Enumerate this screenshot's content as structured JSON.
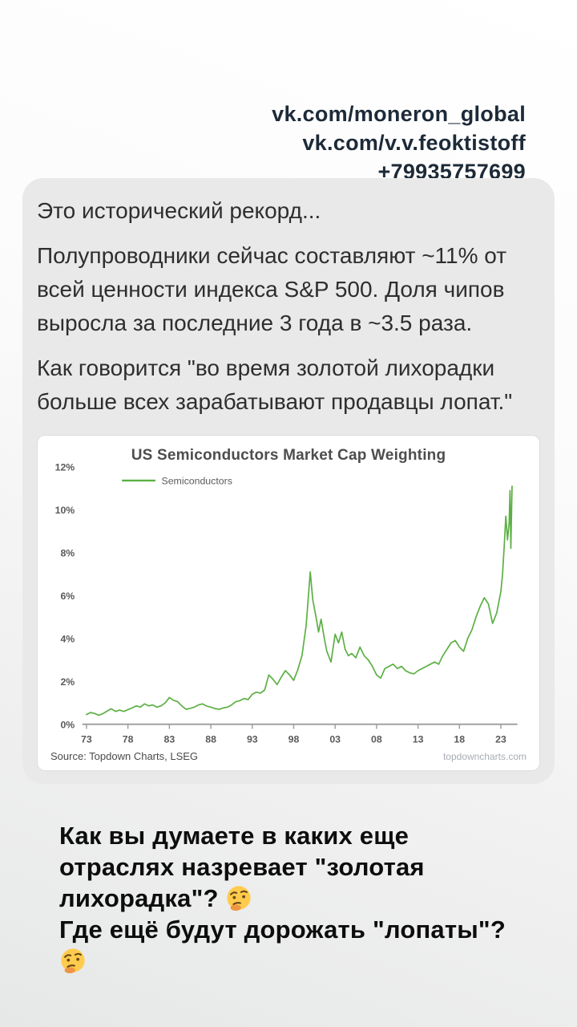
{
  "contact": {
    "line1": "vk.com/moneron_global",
    "line2": "vk.com/v.v.feoktistoff",
    "line3": "+79935757699"
  },
  "post": {
    "paragraph1": "Это исторический рекорд...",
    "paragraph2": "Полупроводники сейчас составляют ~11% от всей ценности индекса S&P 500. Доля чипов выросла за последние 3 года в ~3.5 раза.",
    "paragraph3": "Как говорится \"во время золотой лихорадки больше всех зарабатывают продавцы лопат.\""
  },
  "chart_data": {
    "type": "line",
    "title": "US Semiconductors Market Cap Weighting",
    "xlabel": "",
    "ylabel": "",
    "grid": false,
    "legend_position": "top-left",
    "line_color": "#5cb044",
    "xlim": [
      1972.5,
      2025
    ],
    "ylim": [
      0,
      12
    ],
    "ytick_values": [
      0,
      2,
      4,
      6,
      8,
      10,
      12
    ],
    "ytick_labels": [
      "0%",
      "2%",
      "4%",
      "6%",
      "8%",
      "10%",
      "12%"
    ],
    "xtick_values": [
      1973,
      1978,
      1983,
      1988,
      1993,
      1998,
      2003,
      2008,
      2013,
      2018,
      2023
    ],
    "xtick_labels": [
      "73",
      "78",
      "83",
      "88",
      "93",
      "98",
      "03",
      "08",
      "13",
      "18",
      "23"
    ],
    "x": [
      1973,
      1973.5,
      1974,
      1974.5,
      1975,
      1975.5,
      1976,
      1976.5,
      1977,
      1977.5,
      1978,
      1978.5,
      1979,
      1979.5,
      1980,
      1980.5,
      1981,
      1981.5,
      1982,
      1982.5,
      1983,
      1983.5,
      1984,
      1984.5,
      1985,
      1985.5,
      1986,
      1986.5,
      1987,
      1987.5,
      1988,
      1988.5,
      1989,
      1989.5,
      1990,
      1990.5,
      1991,
      1991.5,
      1992,
      1992.5,
      1993,
      1993.5,
      1994,
      1994.5,
      1995,
      1995.5,
      1996,
      1996.5,
      1997,
      1997.5,
      1998,
      1998.5,
      1999,
      1999.5,
      2000,
      2000.3,
      2000.7,
      2001,
      2001.3,
      2001.7,
      2002,
      2002.5,
      2003,
      2003.4,
      2003.8,
      2004.2,
      2004.6,
      2005,
      2005.5,
      2006,
      2006.5,
      2007,
      2007.5,
      2008,
      2008.5,
      2009,
      2009.5,
      2010,
      2010.5,
      2011,
      2011.5,
      2012,
      2012.5,
      2013,
      2013.5,
      2014,
      2014.5,
      2015,
      2015.5,
      2016,
      2016.5,
      2017,
      2017.5,
      2018,
      2018.5,
      2019,
      2019.5,
      2020,
      2020.5,
      2021,
      2021.5,
      2022,
      2022.5,
      2023,
      2023.2,
      2023.4,
      2023.6,
      2023.8,
      2024,
      2024.1,
      2024.2,
      2024.35
    ],
    "series": [
      {
        "name": "Semiconductors",
        "values": [
          0.45,
          0.55,
          0.5,
          0.42,
          0.5,
          0.62,
          0.72,
          0.6,
          0.66,
          0.6,
          0.68,
          0.76,
          0.86,
          0.8,
          0.95,
          0.86,
          0.9,
          0.8,
          0.86,
          1.0,
          1.25,
          1.12,
          1.05,
          0.86,
          0.7,
          0.74,
          0.8,
          0.9,
          0.95,
          0.85,
          0.8,
          0.73,
          0.7,
          0.76,
          0.8,
          0.9,
          1.05,
          1.1,
          1.2,
          1.15,
          1.4,
          1.5,
          1.45,
          1.6,
          2.3,
          2.1,
          1.85,
          2.2,
          2.5,
          2.3,
          2.05,
          2.55,
          3.2,
          4.6,
          7.1,
          5.8,
          5.0,
          4.3,
          4.9,
          4.0,
          3.4,
          2.9,
          4.2,
          3.8,
          4.3,
          3.5,
          3.2,
          3.3,
          3.1,
          3.6,
          3.2,
          3.0,
          2.7,
          2.3,
          2.15,
          2.6,
          2.7,
          2.8,
          2.6,
          2.7,
          2.5,
          2.4,
          2.35,
          2.5,
          2.6,
          2.7,
          2.8,
          2.9,
          2.8,
          3.2,
          3.5,
          3.8,
          3.9,
          3.6,
          3.4,
          4.0,
          4.4,
          5.0,
          5.5,
          5.9,
          5.6,
          4.7,
          5.2,
          6.2,
          7.0,
          8.3,
          9.7,
          8.6,
          9.4,
          10.9,
          8.2,
          11.1
        ]
      }
    ],
    "source": "Source: Topdown Charts, LSEG",
    "watermark": "topdowncharts.com"
  },
  "questions": {
    "line1": "Как вы думаете в каких еще",
    "line2": "отраслях назревает \"золотая",
    "line3": "лихорадка\"?",
    "line4": "Где ещё будут дорожать \"лопаты\"?"
  }
}
